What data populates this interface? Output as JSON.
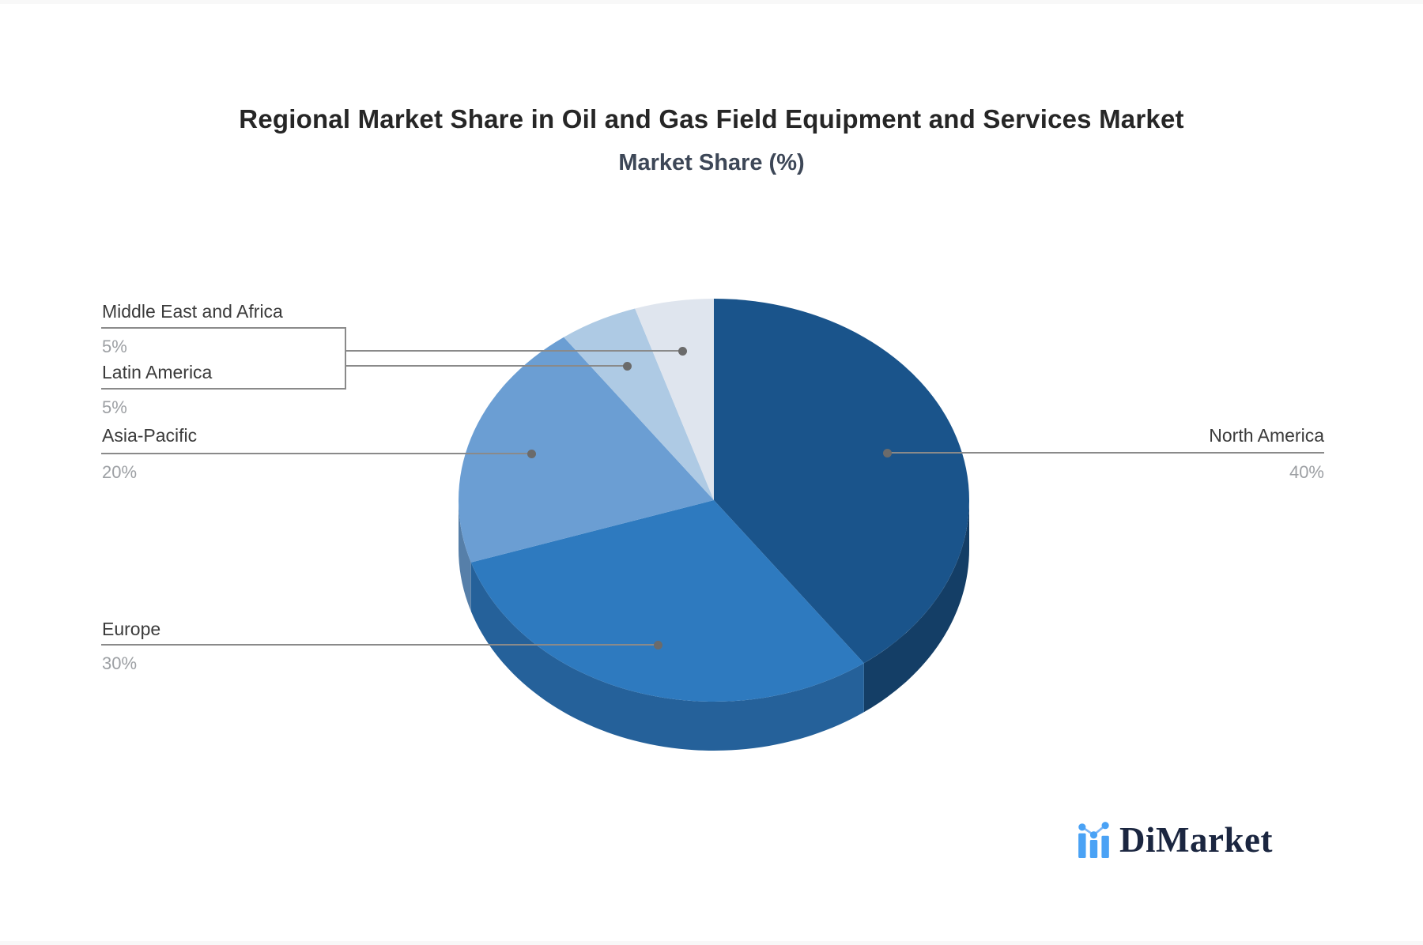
{
  "title": "Regional Market Share in Oil and Gas Field Equipment and Services Market",
  "subtitle": "Market Share (%)",
  "logo": {
    "text": "DiMarket",
    "icon": "bar-line-chart-icon",
    "icon_color": "#4AA2F5",
    "text_color": "#1B2640"
  },
  "colors": {
    "leader_line": "#8A8A8A",
    "leader_dot": "#6B6B6B",
    "label_text": "#3B3B3B",
    "percent_text": "#9DA0A4",
    "title_text": "#262626",
    "subtitle_text": "#3D4757"
  },
  "chart_data": {
    "type": "pie",
    "title": "Regional Market Share in Oil and Gas Field Equipment and Services Market",
    "subtitle": "Market Share (%)",
    "unit": "%",
    "direction": "clockwise",
    "start_angle_from_top_deg": 0,
    "style": "3d-extruded",
    "legend_position": "callout-labels",
    "segments": [
      {
        "label": "North America",
        "value": 40,
        "display": "40%",
        "color": "#1A548B",
        "side_color": "#143E66"
      },
      {
        "label": "Europe",
        "value": 30,
        "display": "30%",
        "color": "#2E7ABF",
        "side_color": "#25619A"
      },
      {
        "label": "Asia-Pacific",
        "value": 20,
        "display": "20%",
        "color": "#6B9ED3",
        "side_color": "#567FA9"
      },
      {
        "label": "Latin America",
        "value": 5,
        "display": "5%",
        "color": "#AECAE4",
        "side_color": "#8FAECD"
      },
      {
        "label": "Middle East and Africa",
        "value": 5,
        "display": "5%",
        "color": "#DFE5EE",
        "side_color": "#C2CCDB"
      }
    ]
  }
}
